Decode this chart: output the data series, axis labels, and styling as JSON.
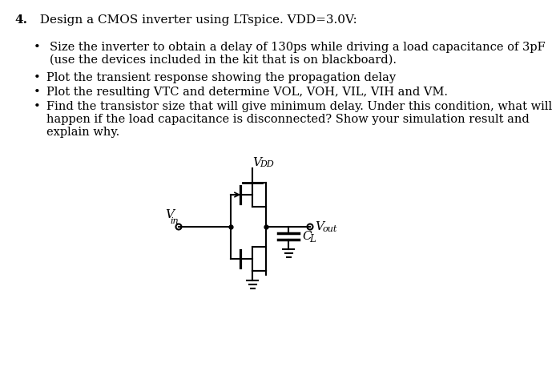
{
  "bg_color": "#ffffff",
  "text_color": "#000000",
  "circuit_color": "#000000",
  "title_num": "4.",
  "title_body": "  Design a CMOS inverter using LTspice. VDD=3.0V:",
  "bullet1_line1": "Size the inverter to obtain a delay of 130ps while driving a load capacitance of 3pF",
  "bullet1_line2": "(use the devices included in the kit that is on blackboard).",
  "bullet2": "Plot the transient response showing the propagation delay",
  "bullet3": "Plot the resulting VTC and determine VOL, VOH, VIL, VIH and VM.",
  "bullet4_line1": "Find the transistor size that will give minimum delay. Under this condition, what will",
  "bullet4_line2": "happen if the load capacitance is disconnected? Show your simulation result and",
  "bullet4_line3": "explain why.",
  "vdd_label": "V",
  "vdd_sub": "DD",
  "vin_label": "V",
  "vin_sub": "in",
  "vout_label": "V",
  "vout_sub": "out",
  "cl_label": "C",
  "cl_sub": "L",
  "fig_w": 6.99,
  "fig_h": 4.58,
  "dpi": 100
}
